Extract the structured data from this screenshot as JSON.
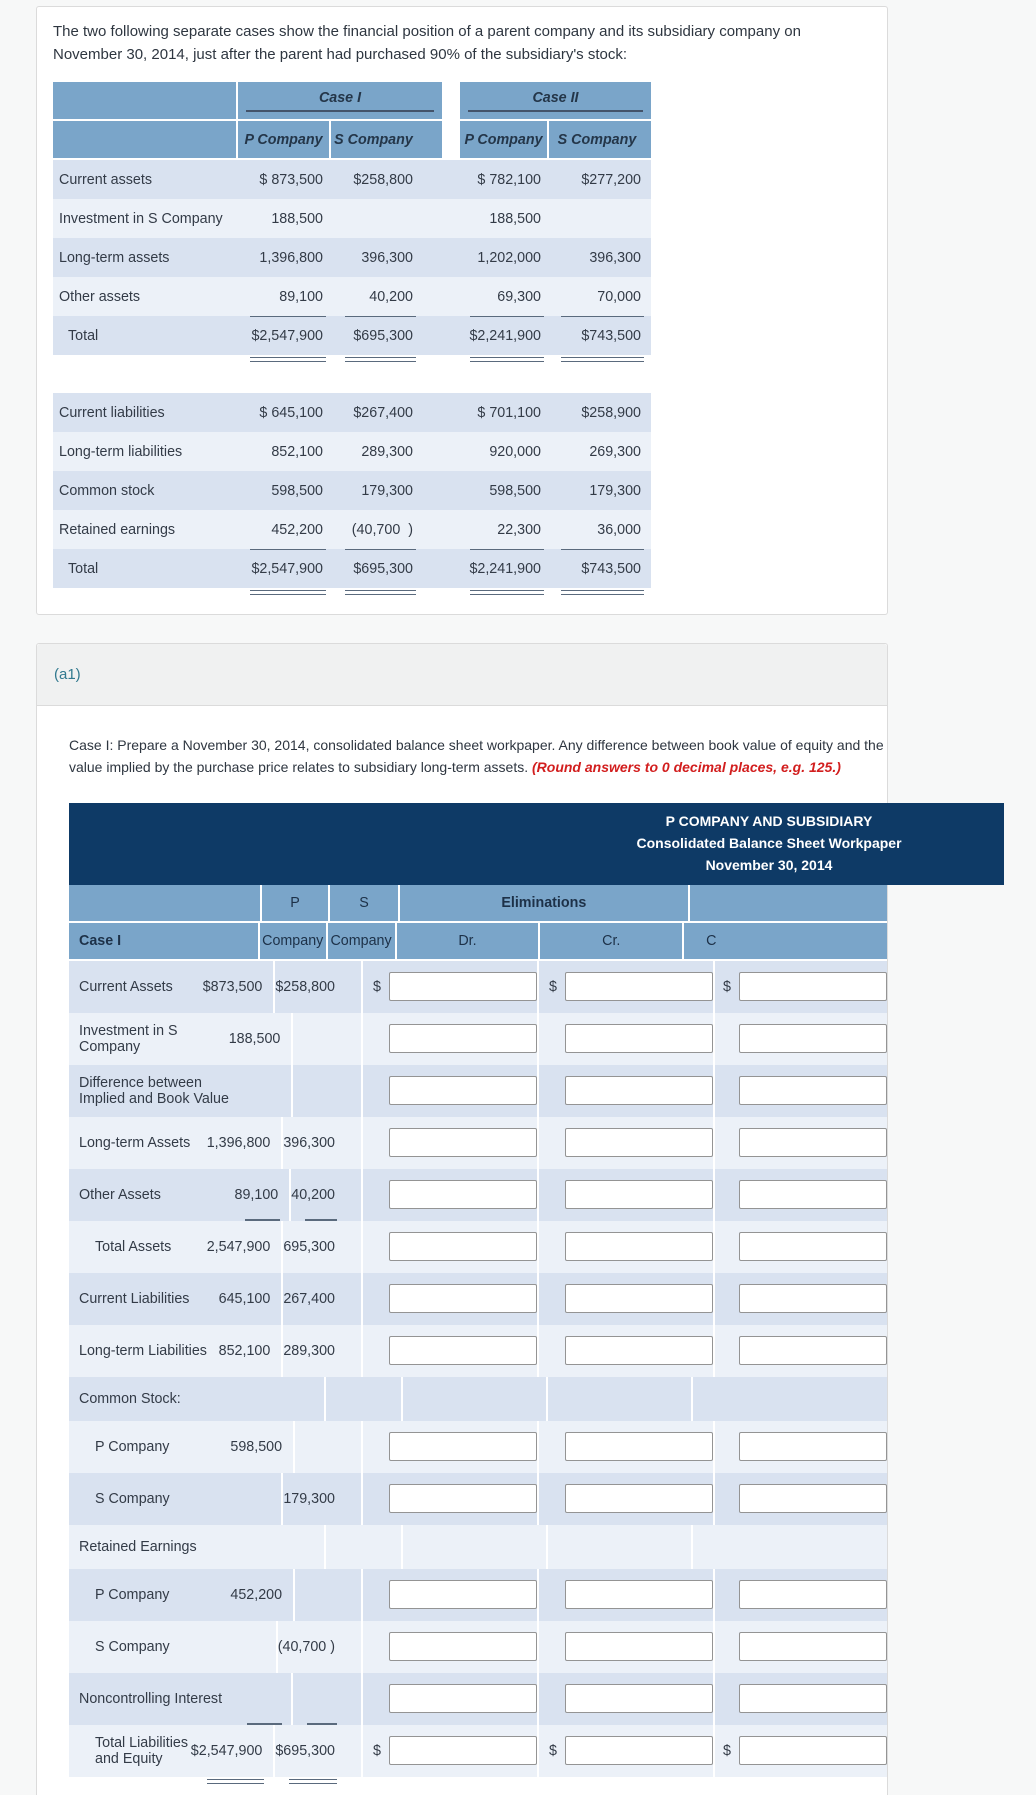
{
  "problem": {
    "intro": "The two following separate cases show the financial position of a parent company and its subsidiary company on November 30, 2014, just after the parent had purchased 90% of the subsidiary's stock:"
  },
  "position_table": {
    "group_headers": [
      "Case I",
      "Case II"
    ],
    "column_headers": [
      "P Company",
      "S Company",
      "P Company",
      "S Company"
    ],
    "sections": [
      {
        "rows": [
          {
            "label": "Current assets",
            "values": [
              "$ 873,500",
              "$258,800",
              "$ 782,100",
              "$277,200"
            ]
          },
          {
            "label": "Investment in S Company",
            "values": [
              "188,500",
              "",
              "188,500",
              ""
            ]
          },
          {
            "label": "Long-term assets",
            "values": [
              "1,396,800",
              "396,300",
              "1,202,000",
              "396,300"
            ]
          },
          {
            "label": "Other assets",
            "values": [
              "89,100",
              "40,200",
              "69,300",
              "70,000"
            ]
          },
          {
            "label": "Total",
            "values": [
              "$2,547,900",
              "$695,300",
              "$2,241,900",
              "$743,500"
            ],
            "total": true
          }
        ]
      },
      {
        "rows": [
          {
            "label": "Current liabilities",
            "values": [
              "$ 645,100",
              "$267,400",
              "$ 701,100",
              "$258,900"
            ]
          },
          {
            "label": "Long-term liabilities",
            "values": [
              "852,100",
              "289,300",
              "920,000",
              "269,300"
            ]
          },
          {
            "label": "Common stock",
            "values": [
              "598,500",
              "179,300",
              "598,500",
              "179,300"
            ]
          },
          {
            "label": "Retained earnings",
            "values": [
              "452,200",
              "(40,700  )",
              "22,300",
              "36,000"
            ]
          },
          {
            "label": "Total",
            "values": [
              "$2,547,900",
              "$695,300",
              "$2,241,900",
              "$743,500"
            ],
            "total": true
          }
        ]
      }
    ]
  },
  "part": {
    "label": "(a1)"
  },
  "instructions": {
    "body": "Case I: Prepare a November 30, 2014, consolidated balance sheet workpaper. Any difference between book value of equity and the value implied by the purchase price relates to subsidiary long-term assets. ",
    "emphasis": "(Round answers to 0 decimal places, e.g. 125.)"
  },
  "workpaper": {
    "title_line1": "P COMPANY AND SUBSIDIARY",
    "title_line2": "Consolidated Balance Sheet Workpaper",
    "title_line3": "November 30, 2014",
    "currency_symbol": "$",
    "header": {
      "p_top": "P",
      "s_top": "S",
      "eliminations": "Eliminations",
      "case_label": "Case I",
      "p_bottom": "Company",
      "s_bottom": "Company",
      "dr": "Dr.",
      "cr": "Cr.",
      "far_right_partial": "C"
    },
    "rows": [
      {
        "label": "Current Assets",
        "p": "$873,500",
        "s": "$258,800",
        "inputs": true,
        "dollar": true
      },
      {
        "label": "Investment in S Company",
        "p": "188,500",
        "s": "",
        "inputs": true
      },
      {
        "label": "Difference between Implied and Book Value",
        "p": "",
        "s": "",
        "inputs": true
      },
      {
        "label": "Long-term Assets",
        "p": "1,396,800",
        "s": "396,300",
        "inputs": true
      },
      {
        "label": "Other Assets",
        "p": "89,100",
        "s": "40,200",
        "inputs": true,
        "rule_below": true
      },
      {
        "label": "Total Assets",
        "p": "2,547,900",
        "s": "695,300",
        "indent": true,
        "inputs": true
      },
      {
        "label": "Current Liabilities",
        "p": "645,100",
        "s": "267,400",
        "inputs": true
      },
      {
        "label": "Long-term Liabilities",
        "p": "852,100",
        "s": "289,300",
        "inputs": true
      },
      {
        "label": "Common Stock:",
        "p": "",
        "s": "",
        "inputs": false
      },
      {
        "label": "P Company",
        "p": "598,500",
        "s": "",
        "indent": true,
        "inputs": true
      },
      {
        "label": "S Company",
        "p": "",
        "s": "179,300",
        "indent": true,
        "inputs": true
      },
      {
        "label": "Retained Earnings",
        "p": "",
        "s": "",
        "inputs": false
      },
      {
        "label": "P Company",
        "p": "452,200",
        "s": "",
        "indent": true,
        "inputs": true
      },
      {
        "label": "S Company",
        "p": "",
        "s": "(40,700 )",
        "indent": true,
        "inputs": true
      },
      {
        "label": "Noncontrolling Interest",
        "p": "",
        "s": "",
        "inputs": true,
        "rule_below": true
      },
      {
        "label": "Total Liabilities and Equity",
        "p": "$2,547,900",
        "s": "$695,300",
        "indent": true,
        "inputs": true,
        "dollar": true,
        "double_underline": true
      }
    ]
  }
}
